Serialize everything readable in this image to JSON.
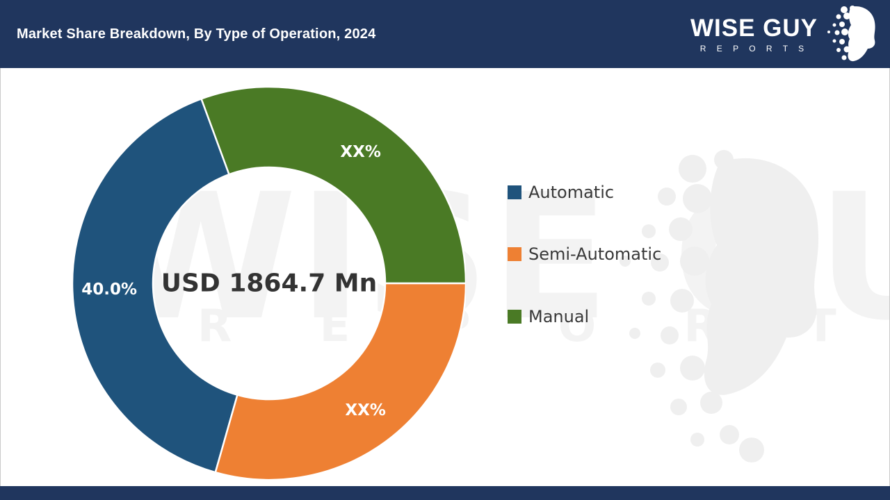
{
  "header": {
    "title": "Market Share Breakdown, By Type of Operation, 2024",
    "logo": {
      "line1": "WISE GUY",
      "line2": "R E P O R T S"
    }
  },
  "watermark": {
    "line1": "WISE GUY",
    "line2": "R E P O R T S"
  },
  "chart_data": {
    "type": "pie",
    "subtype": "donut",
    "title": "Market Share Breakdown, By Type of Operation, 2024",
    "center_label": "USD 1864.7 Mn",
    "segments": [
      {
        "name": "Automatic",
        "value": 40.0,
        "label": "40.0%",
        "color": "#1F537C"
      },
      {
        "name": "Semi-Automatic",
        "value": 29.4,
        "label": "XX%",
        "color": "#EE8033"
      },
      {
        "name": "Manual",
        "value": 30.6,
        "label": "XX%",
        "color": "#4A7A25"
      }
    ],
    "draw_order_ccw_from_3oclock": [
      "Manual",
      "Automatic",
      "Semi-Automatic"
    ],
    "legend_order": [
      "Automatic",
      "Semi-Automatic",
      "Manual"
    ],
    "legend_position": "right",
    "geometry": {
      "outer_radius": 283,
      "inner_radius": 167,
      "label_radius": 230,
      "start_angle_deg": 0
    }
  },
  "colors": {
    "header_bg": "#20365E",
    "footer_bg": "#20365E",
    "panel_border": "#C9C9C9",
    "center_text": "#333333",
    "legend_text": "#383838",
    "slice_label_text": "#FFFFFF",
    "watermark": "#F3F3F3"
  }
}
